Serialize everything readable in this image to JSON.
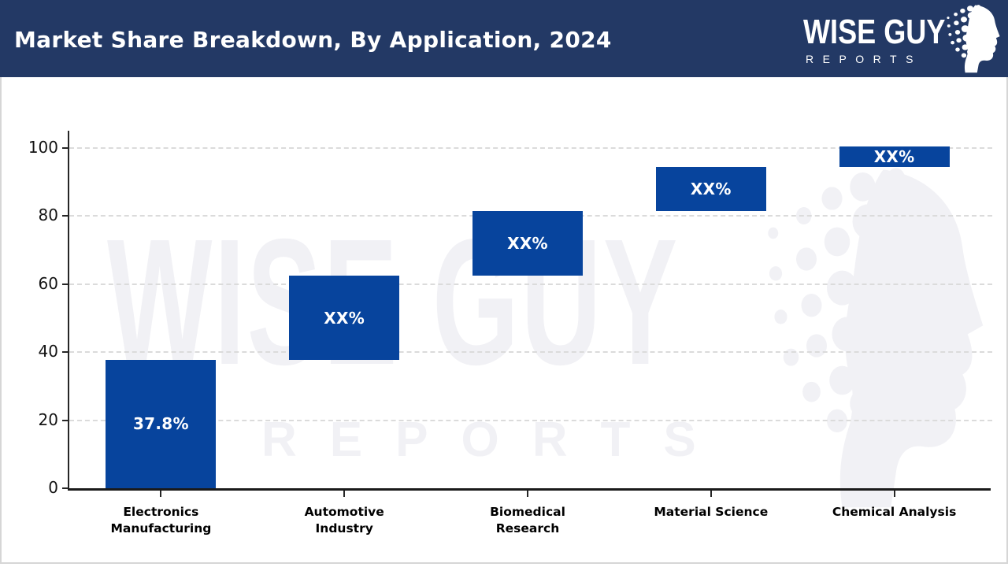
{
  "header": {
    "logo": {
      "line1": "WISE GUY",
      "line2": "REPORTS"
    }
  },
  "watermark": {
    "line1": "WISE GUY",
    "line2": "REPORTS"
  },
  "chart_data": {
    "type": "bar",
    "subtype": "waterfall",
    "title": "Market Share Breakdown, By Application, 2024",
    "categories": [
      "Electronics\nManufacturing",
      "Automotive\nIndustry",
      "Biomedical\nResearch",
      "Material Science",
      "Chemical Analysis"
    ],
    "segments": [
      {
        "category": "Electronics Manufacturing",
        "start": 0,
        "end": 37.8,
        "label": "37.8%"
      },
      {
        "category": "Automotive Industry",
        "start": 37.8,
        "end": 62.4,
        "label": "XX%"
      },
      {
        "category": "Biomedical Research",
        "start": 62.4,
        "end": 81.4,
        "label": "XX%"
      },
      {
        "category": "Material Science",
        "start": 81.4,
        "end": 94.5,
        "label": "XX%"
      },
      {
        "category": "Chemical Analysis",
        "start": 94.5,
        "end": 100.5,
        "label": "XX%"
      }
    ],
    "y_ticks": [
      0,
      20,
      40,
      60,
      80,
      100
    ],
    "ylim": [
      0,
      105
    ],
    "grid": "horizontal-dashed",
    "legend": "none",
    "colors": {
      "bar": "#07449d",
      "bar_label": "#ffffff",
      "header_bg": "#233965",
      "grid": "#dbdbdb",
      "axis": "#1a1a1a",
      "tick_text": "#141414",
      "watermark": "#f1f1f5"
    }
  }
}
